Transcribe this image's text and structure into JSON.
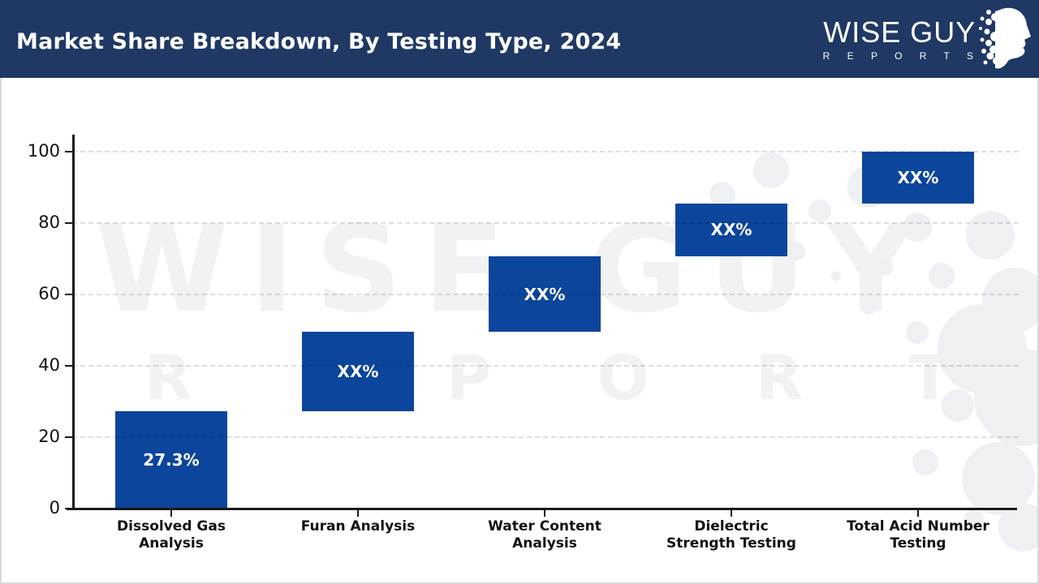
{
  "header": {
    "title": "Market Share Breakdown, By Testing Type, 2024",
    "logo": {
      "line1": "WISE GUY",
      "line2": "R E P O R T S"
    }
  },
  "watermark": {
    "line1": "WISE GUY",
    "line2": "R E P O R T S"
  },
  "chart_data": {
    "type": "bar",
    "subtype": "waterfall",
    "title": "Market Share Breakdown, By Testing Type, 2024",
    "categories": [
      "Dissolved Gas\nAnalysis",
      "Furan Analysis",
      "Water Content\nAnalysis",
      "Dielectric\nStrength Testing",
      "Total Acid Number\nTesting"
    ],
    "segments": [
      {
        "start": 0,
        "end": 27.3,
        "label": "27.3%"
      },
      {
        "start": 27.3,
        "end": 49.5,
        "label": "XX%"
      },
      {
        "start": 49.5,
        "end": 70.7,
        "label": "XX%"
      },
      {
        "start": 70.7,
        "end": 85.5,
        "label": "XX%"
      },
      {
        "start": 85.5,
        "end": 100,
        "label": "XX%"
      }
    ],
    "yticks": [
      0,
      20,
      40,
      60,
      80,
      100
    ],
    "gridline_levels": [
      20,
      40,
      60,
      80,
      100
    ],
    "ylim": [
      0,
      105
    ],
    "xlabel": "",
    "ylabel": "",
    "grid": true,
    "legend": "none",
    "bar_color": "#0b459c",
    "bar_label_color": "#ffffff"
  },
  "colors": {
    "header_bg": "#1f3864",
    "axis": "#1a1a1a",
    "grid": "#dcdcdc",
    "watermark": "#f2f2f5",
    "border": "#d9d9d9"
  }
}
